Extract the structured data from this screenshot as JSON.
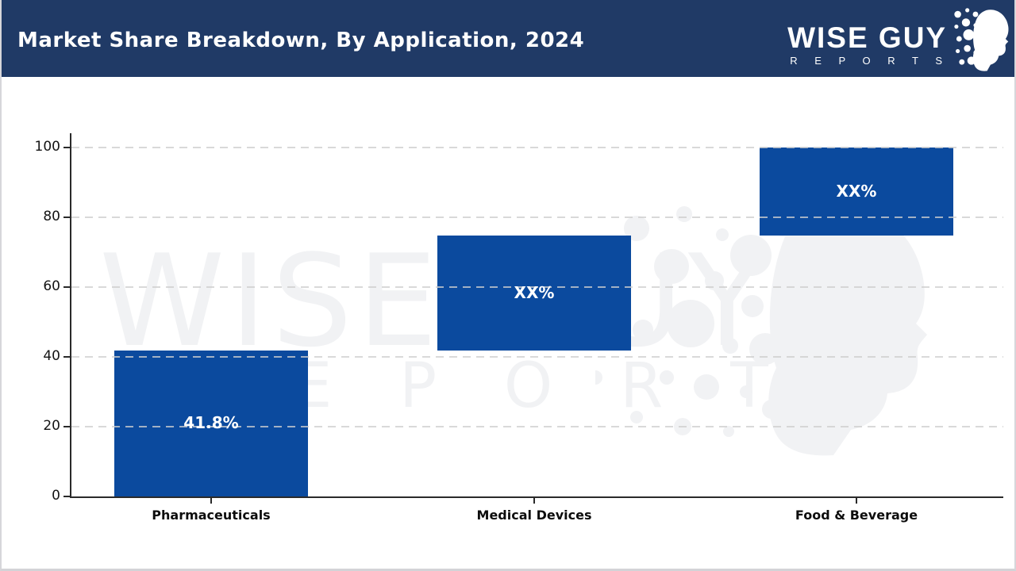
{
  "header": {
    "title": "Market Share Breakdown, By Application, 2024",
    "logo": {
      "line1": "WISE GUY",
      "line2": "R E P O R T S"
    }
  },
  "watermark": {
    "line1": "WISE GUY",
    "line2": "R E P O R T S"
  },
  "colors": {
    "header_bg": "#203a66",
    "bar_blue": "#0b4a9e",
    "watermark": "#f1f2f4",
    "axis": "#2a2a2a",
    "grid": "#cecece",
    "bar_label": "#ffffff"
  },
  "chart_data": {
    "type": "bar",
    "subtype": "waterfall-stacked-breakdown",
    "title": "Market Share Breakdown, By Application, 2024",
    "categories": [
      "Pharmaceuticals",
      "Medical Devices",
      "Food & Beverage"
    ],
    "segments": [
      {
        "category": "Pharmaceuticals",
        "start": 0,
        "end": 41.8,
        "label": "41.8%"
      },
      {
        "category": "Medical Devices",
        "start": 41.8,
        "end": 74.7,
        "label": "XX%"
      },
      {
        "category": "Food & Beverage",
        "start": 74.7,
        "end": 100,
        "label": "XX%"
      }
    ],
    "xlabel": "",
    "ylabel": "",
    "ylim": [
      0,
      100
    ],
    "yticks": [
      0,
      20,
      40,
      60,
      80,
      100
    ],
    "grid": "horizontal-dashed",
    "legend": "none"
  }
}
